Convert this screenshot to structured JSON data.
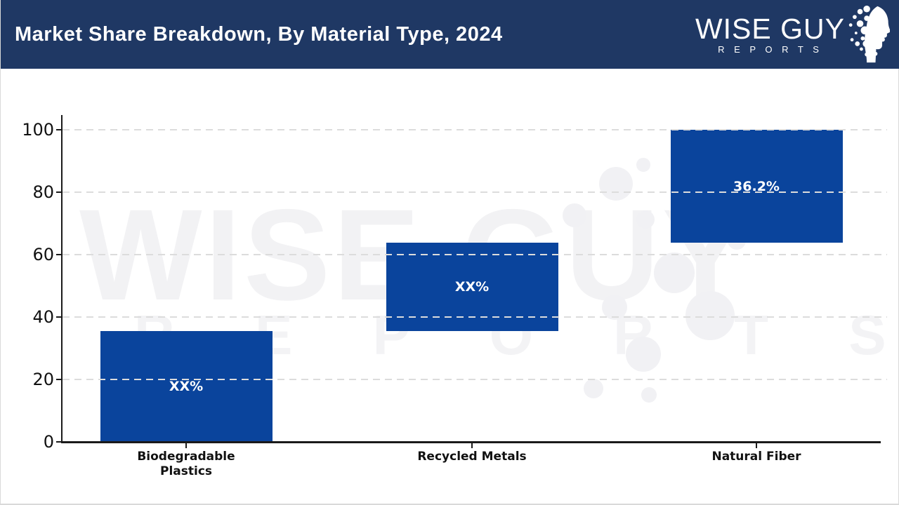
{
  "header": {
    "title": "Market Share Breakdown, By Material Type, 2024",
    "bg_color": "#1F3864",
    "logo": {
      "wordmark": "WISE GUY",
      "subtext": "R E P O R T S"
    }
  },
  "watermark": {
    "line1": "WISE GUY",
    "line2": "R E P O R T S"
  },
  "chart_data": {
    "type": "bar",
    "variant": "waterfall-floating-segments",
    "title": "Market Share Breakdown, By Material Type, 2024",
    "categories": [
      "Biodegradable Plastics",
      "Recycled Metals",
      "Natural Fiber"
    ],
    "bars": [
      {
        "category": "Biodegradable Plastics",
        "start": 0,
        "end": 35.5,
        "value_label": "XX%"
      },
      {
        "category": "Recycled Metals",
        "start": 35.5,
        "end": 63.8,
        "value_label": "XX%"
      },
      {
        "category": "Natural Fiber",
        "start": 63.8,
        "end": 100,
        "value_label": "36.2%"
      }
    ],
    "yticks": [
      0,
      20,
      40,
      60,
      80,
      100
    ],
    "ylim": [
      0,
      104.5
    ],
    "xlabel": "",
    "ylabel": "",
    "bar_color": "#0A449C",
    "bar_label_color": "#ffffff",
    "gridlines": "horizontal-dashed",
    "gridline_color": "#dcdcdc",
    "legend": false
  }
}
